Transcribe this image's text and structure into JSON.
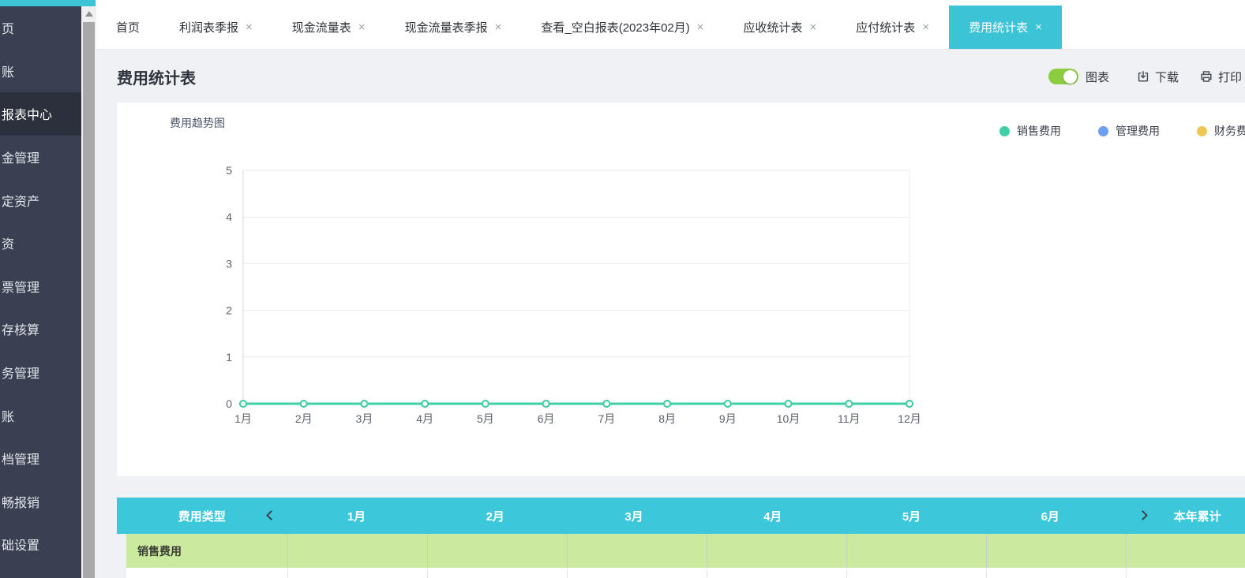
{
  "colors": {
    "accent_teal": "#3cc3d6",
    "table_header_teal": "#3cc7db",
    "table_row_green": "#cbeaa0",
    "toggle_green": "#8ccc41",
    "sidebar_bg": "#3a4051",
    "sidebar_active_bg": "#2c2f3c"
  },
  "sidebar": {
    "items": [
      {
        "label": "页",
        "active": false
      },
      {
        "label": "账",
        "active": false
      },
      {
        "label": "报表中心",
        "active": true
      },
      {
        "label": "金管理",
        "active": false
      },
      {
        "label": "定资产",
        "active": false
      },
      {
        "label": "资",
        "active": false
      },
      {
        "label": "票管理",
        "active": false
      },
      {
        "label": "存核算",
        "active": false
      },
      {
        "label": "务管理",
        "active": false
      },
      {
        "label": "账",
        "active": false
      },
      {
        "label": "档管理",
        "active": false
      },
      {
        "label": "畅报销",
        "active": false
      },
      {
        "label": "础设置",
        "active": false
      }
    ]
  },
  "tabs": [
    {
      "label": "首页",
      "closable": false,
      "active": false
    },
    {
      "label": "利润表季报",
      "closable": true,
      "active": false
    },
    {
      "label": "现金流量表",
      "closable": true,
      "active": false
    },
    {
      "label": "现金流量表季报",
      "closable": true,
      "active": false
    },
    {
      "label": "查看_空白报表(2023年02月)",
      "closable": true,
      "active": false
    },
    {
      "label": "应收统计表",
      "closable": true,
      "active": false
    },
    {
      "label": "应付统计表",
      "closable": true,
      "active": false
    },
    {
      "label": "费用统计表",
      "closable": true,
      "active": true
    }
  ],
  "page": {
    "title": "费用统计表"
  },
  "toolbar": {
    "chart_toggle_label": "图表",
    "chart_toggle_on": true,
    "download_label": "下载",
    "print_label": "打印"
  },
  "chart_data": {
    "type": "line",
    "title": "费用趋势图",
    "categories": [
      "1月",
      "2月",
      "3月",
      "4月",
      "5月",
      "6月",
      "7月",
      "8月",
      "9月",
      "10月",
      "11月",
      "12月"
    ],
    "series": [
      {
        "name": "销售费用",
        "color": "#3ecfa4",
        "values": [
          0,
          0,
          0,
          0,
          0,
          0,
          0,
          0,
          0,
          0,
          0,
          0
        ]
      },
      {
        "name": "管理费用",
        "color": "#6d9ff1",
        "values": [
          0,
          0,
          0,
          0,
          0,
          0,
          0,
          0,
          0,
          0,
          0,
          0
        ]
      },
      {
        "name": "财务费用",
        "color": "#f0c654",
        "values": [
          0,
          0,
          0,
          0,
          0,
          0,
          0,
          0,
          0,
          0,
          0,
          0
        ]
      }
    ],
    "ylim": [
      0,
      5
    ],
    "yticks": [
      0,
      1,
      2,
      3,
      4,
      5
    ],
    "grid": true,
    "legend_position": "top-right"
  },
  "table": {
    "columns": [
      "费用类型",
      "1月",
      "2月",
      "3月",
      "4月",
      "5月",
      "6月",
      "本年累计"
    ],
    "rows": [
      {
        "name": "销售费用",
        "values": [
          "",
          "",
          "",
          "",
          "",
          "",
          ""
        ]
      },
      {
        "name": "",
        "values": [
          "",
          "",
          "",
          "",
          "",
          "",
          ""
        ]
      }
    ]
  }
}
